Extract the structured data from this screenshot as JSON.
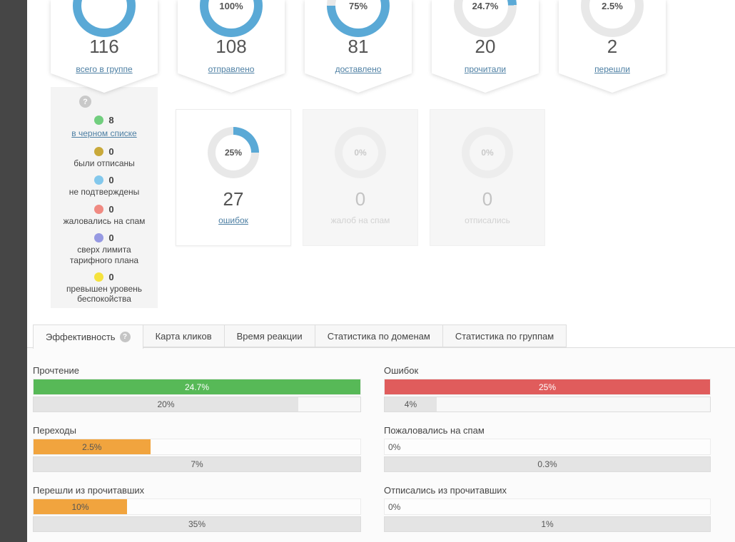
{
  "colors": {
    "ring_blue": "#5aa9d6",
    "ring_track": "#e8e8e8",
    "muted_ring": "#e2e2e2",
    "muted_track": "#ededed",
    "green": "#57b957",
    "red": "#e05c5c",
    "orange": "#f1a43e",
    "link": "#4d7fa3",
    "sidebar": "#464646"
  },
  "summary_cards": [
    {
      "value": "116",
      "label": "всего в группе",
      "percent": "",
      "pct": 100,
      "muted": false
    },
    {
      "value": "108",
      "label": "отправлено",
      "percent": "100%",
      "pct": 100,
      "muted": false
    },
    {
      "value": "81",
      "label": "доставлено",
      "percent": "75%",
      "pct": 75,
      "muted": false
    },
    {
      "value": "20",
      "label": "прочитали",
      "percent": "24.7%",
      "pct": 24.7,
      "muted": false
    },
    {
      "value": "2",
      "label": "перешли",
      "percent": "2.5%",
      "pct": 2.5,
      "muted": false
    }
  ],
  "legend": {
    "help_icon": "?",
    "items": [
      {
        "count": "8",
        "label": "в черном списке",
        "color": "#71ce7e",
        "link": true
      },
      {
        "count": "0",
        "label": "были отписаны",
        "color": "#c9a93a",
        "link": false
      },
      {
        "count": "0",
        "label": "не подтверждены",
        "color": "#83c8ec",
        "link": false
      },
      {
        "count": "0",
        "label": "жаловались на спам",
        "color": "#f08a82",
        "link": false
      },
      {
        "count": "0",
        "label": "сверх лимита тарифного плана",
        "color": "#9699e2",
        "link": false
      },
      {
        "count": "0",
        "label": "превышен уровень беспокойства",
        "color": "#f5e23d",
        "link": false
      }
    ]
  },
  "detail_cards": [
    {
      "value": "27",
      "label": "ошибок",
      "percent": "25%",
      "pct": 25,
      "muted": false
    },
    {
      "value": "0",
      "label": "жалоб на спам",
      "percent": "0%",
      "pct": 0,
      "muted": true
    },
    {
      "value": "0",
      "label": "отписались",
      "percent": "0%",
      "pct": 0,
      "muted": true
    }
  ],
  "tabs": [
    {
      "label": "Эффективность",
      "active": true,
      "help_badge": "?"
    },
    {
      "label": "Карта кликов",
      "active": false
    },
    {
      "label": "Время реакции",
      "active": false
    },
    {
      "label": "Статистика по доменам",
      "active": false
    },
    {
      "label": "Статистика по группам",
      "active": false
    }
  ],
  "metrics": {
    "left": [
      {
        "title": "Прочтение",
        "value_label": "24.7%",
        "value_width": 100,
        "bar_color": "#57b957",
        "text_color": "#ffffff",
        "avg_label": "20%",
        "avg_width": 81
      },
      {
        "title": "Переходы",
        "value_label": "2.5%",
        "value_width": 35.7,
        "bar_color": "#f1a43e",
        "text_color": "#555555",
        "avg_label": "7%",
        "avg_width": 100
      },
      {
        "title": "Перешли из прочитавших",
        "value_label": "10%",
        "value_width": 28.6,
        "bar_color": "#f1a43e",
        "text_color": "#555555",
        "avg_label": "35%",
        "avg_width": 100
      }
    ],
    "right": [
      {
        "title": "Ошибок",
        "value_label": "25%",
        "value_width": 100,
        "bar_color": "#e05c5c",
        "text_color": "#ffffff",
        "avg_label": "4%",
        "avg_width": 16
      },
      {
        "title": "Пожаловались на спам",
        "value_label": "0%",
        "value_width": 0,
        "bar_color": "",
        "text_color": "#555555",
        "avg_label": "0.3%",
        "avg_width": 100
      },
      {
        "title": "Отписались из прочитавших",
        "value_label": "0%",
        "value_width": 0,
        "bar_color": "",
        "text_color": "#555555",
        "avg_label": "1%",
        "avg_width": 100
      }
    ]
  }
}
